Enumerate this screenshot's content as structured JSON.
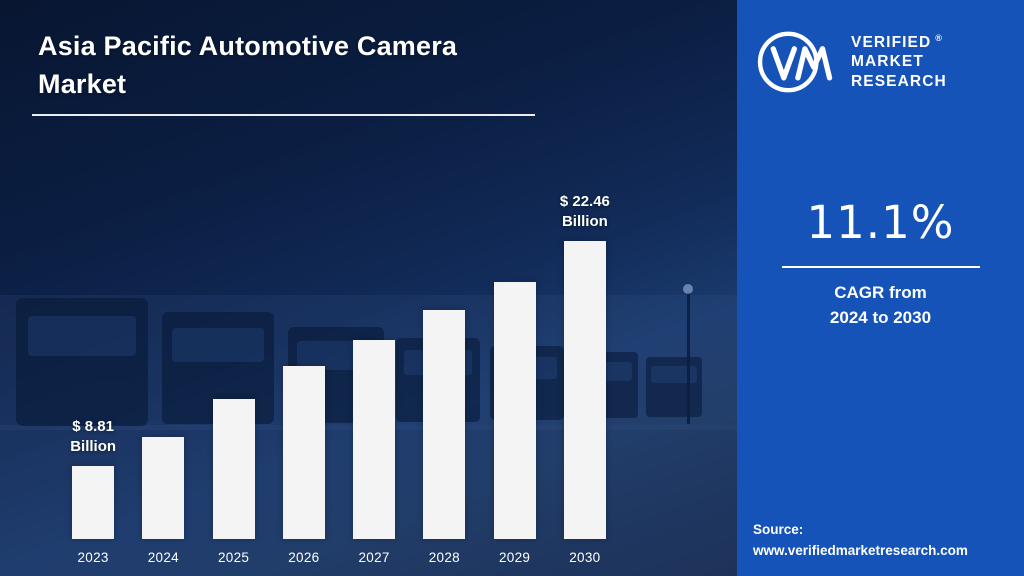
{
  "header": {
    "title": "Asia Pacific Automotive Camera Market"
  },
  "chart_data": {
    "type": "bar",
    "title": "Asia Pacific Automotive Camera Market",
    "unit": "USD Billion",
    "categories": [
      "2023",
      "2024",
      "2025",
      "2026",
      "2027",
      "2028",
      "2029",
      "2030"
    ],
    "values": [
      8.81,
      10.6,
      12.9,
      14.9,
      16.5,
      18.3,
      20.0,
      22.46
    ],
    "ylim": [
      4.4,
      24
    ],
    "grid": false,
    "legend": false,
    "bar_color": "#f4f4f4",
    "annotations": [
      {
        "index": 0,
        "lines": [
          "$ 8.81",
          "Billion"
        ]
      },
      {
        "index": 7,
        "lines": [
          "$ 22.46",
          "Billion"
        ]
      }
    ]
  },
  "panel": {
    "brand": {
      "lines": [
        "VERIFIED",
        "MARKET",
        "RESEARCH"
      ],
      "registered": "®"
    },
    "cagr": {
      "value": "11.1%",
      "line1": "CAGR from",
      "line2": "2024 to 2030"
    },
    "source": {
      "label": "Source:",
      "url": "www.verifiedmarketresearch.com"
    }
  },
  "colors": {
    "panel_blue": "#1553b8",
    "bar": "#f4f4f4",
    "left_bg_top": "#081631",
    "left_bg_bottom": "#16294a",
    "text": "#ffffff"
  }
}
